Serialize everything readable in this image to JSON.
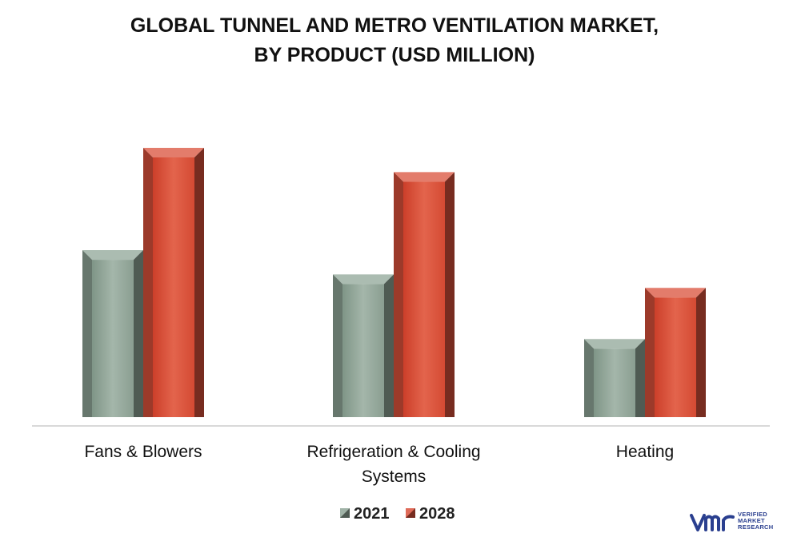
{
  "title_lines": [
    "GLOBAL TUNNEL AND METRO VENTILATION MARKET,",
    "BY PRODUCT (USD MILLION)"
  ],
  "chart_data": {
    "type": "bar",
    "title": "GLOBAL TUNNEL AND METRO VENTILATION MARKET, BY PRODUCT (USD MILLION)",
    "categories": [
      [
        "Fans & Blowers"
      ],
      [
        "Refrigeration & Cooling",
        "Systems"
      ],
      [
        "Heating"
      ]
    ],
    "series": [
      {
        "name": "2021",
        "values": [
          62,
          53,
          29
        ],
        "color": "#8fa597"
      },
      {
        "name": "2028",
        "values": [
          100,
          91,
          48
        ],
        "color": "#d9503a"
      }
    ],
    "xlabel": "",
    "ylabel": "",
    "ylim": [
      0,
      100
    ],
    "grid": false,
    "legend": "bottom-center",
    "y_axis_shown": false
  },
  "logo": {
    "line1": "VERIFIED",
    "line2": "MARKET",
    "line3": "RESEARCH",
    "mark": "vmr",
    "color": "#2a3f8f"
  }
}
